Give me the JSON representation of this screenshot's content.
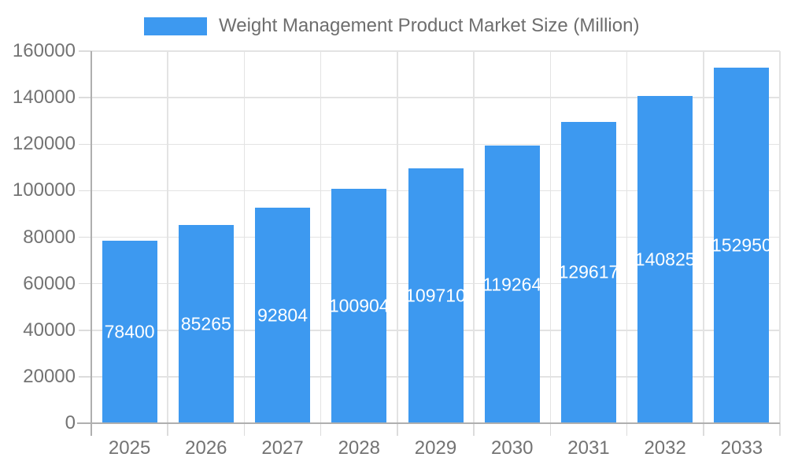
{
  "chart_data": {
    "type": "bar",
    "title": "Weight Management Product Market Size (Million)",
    "series_name": "Weight Management Product Market Size (Million)",
    "categories": [
      "2025",
      "2026",
      "2027",
      "2028",
      "2029",
      "2030",
      "2031",
      "2032",
      "2033"
    ],
    "values": [
      78400,
      85265,
      92804,
      100904,
      109710,
      119264,
      129617,
      140825,
      152950
    ],
    "bar_value_labels": [
      "78400",
      "85265",
      "92804",
      "100904",
      "109710",
      "119264",
      "129617",
      "140825",
      "152950"
    ],
    "xlabel": "",
    "ylabel": "",
    "ylim": [
      0,
      160000
    ],
    "ytick_step": 20000,
    "ytick_labels": [
      "0",
      "20000",
      "40000",
      "60000",
      "80000",
      "100000",
      "120000",
      "140000",
      "160000"
    ],
    "grid": true,
    "legend_position": "top-center",
    "bar_labels_position": "inside-center"
  },
  "colors": {
    "bar_fill": "#3D99F0",
    "bar_label_text": "#FFFFFF",
    "gridline": "#E3E3E3",
    "axis_line": "#AFAFAF",
    "tick_mark": "#DCDCDC",
    "tick_label_text": "#737373",
    "title_text": "#6E6E6E",
    "background": "#FFFFFF"
  }
}
